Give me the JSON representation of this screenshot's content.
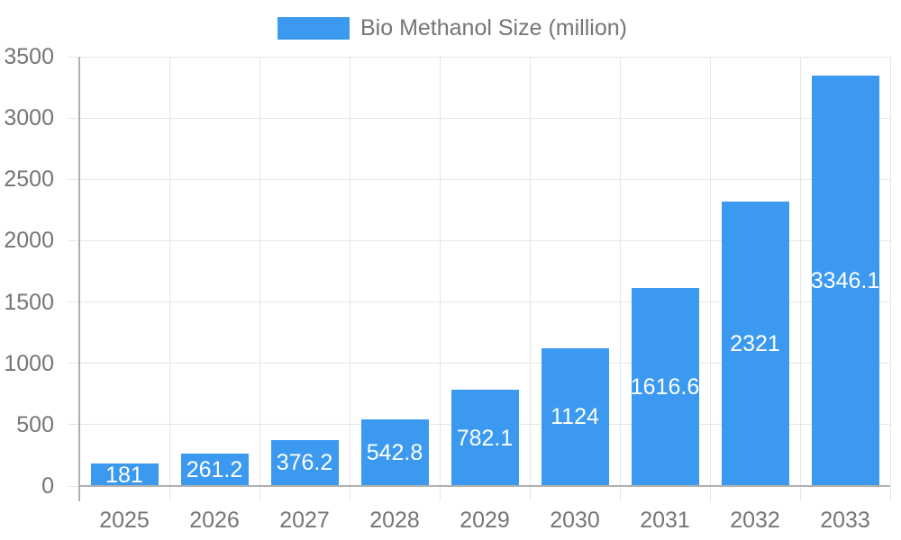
{
  "legend": {
    "label": "Bio Methanol Size (million)"
  },
  "chart_data": {
    "type": "bar",
    "title": "Bio Methanol Size (million)",
    "categories": [
      "2025",
      "2026",
      "2027",
      "2028",
      "2029",
      "2030",
      "2031",
      "2032",
      "2033"
    ],
    "series": [
      {
        "name": "Bio Methanol Size (million)",
        "values": [
          181,
          261.2,
          376.2,
          542.8,
          782.1,
          1124,
          1616.6,
          2321,
          3346.1
        ]
      }
    ],
    "value_labels": [
      "181",
      "261.2",
      "376.2",
      "542.8",
      "782.1",
      "1124",
      "1616.6",
      "2321",
      "3346.1"
    ],
    "xlabel": "",
    "ylabel": "",
    "ylim": [
      0,
      3500
    ],
    "yticks": [
      0,
      500,
      1000,
      1500,
      2000,
      2500,
      3000,
      3500
    ],
    "grid": true,
    "legend_position": "top",
    "colors": {
      "bar": "#3b99f0",
      "grid": "#e6e6e6",
      "axis": "#b0b0b0",
      "text": "#757575",
      "bar_label": "#ffffff"
    }
  }
}
